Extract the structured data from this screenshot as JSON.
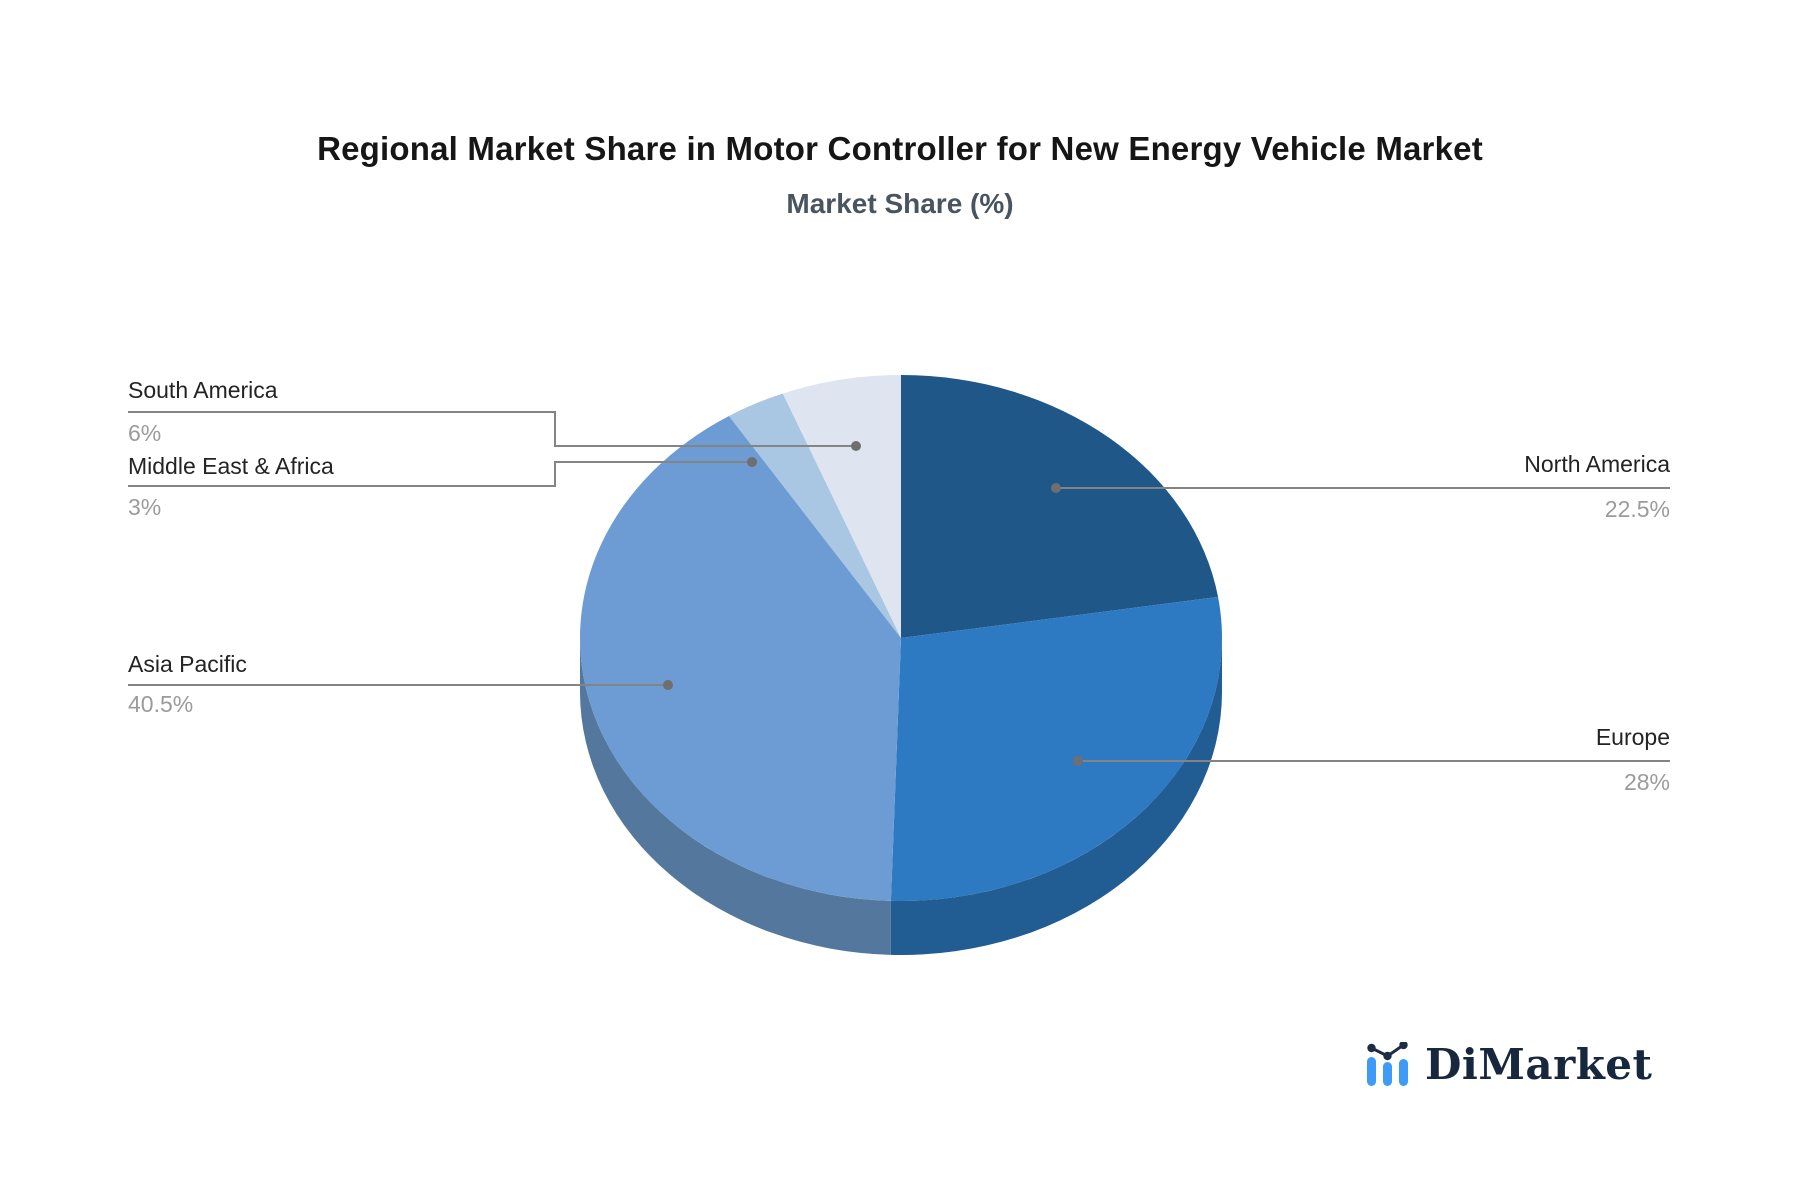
{
  "chart_data": {
    "type": "pie",
    "effect": "3d",
    "title": "Regional Market Share in Motor Controller for New Energy Vehicle Market",
    "subtitle": "Market Share (%)",
    "unit": "%",
    "direction": "clockwise",
    "start_angle_deg": 0,
    "legend_position": "none",
    "label_style": "callout-lines",
    "slices": [
      {
        "label": "North America",
        "value": 22.5,
        "display_value": "22.5%",
        "color": "#1F5788",
        "side_color": "#19466E"
      },
      {
        "label": "Europe",
        "value": 28,
        "display_value": "28%",
        "color": "#2E7AC2",
        "side_color": "#215C93"
      },
      {
        "label": "Asia Pacific",
        "value": 40.5,
        "display_value": "40.5%",
        "color": "#6D9CD4",
        "side_color": "#54789D"
      },
      {
        "label": "Middle East & Africa",
        "value": 3,
        "display_value": "3%",
        "color": "#A9C7E3",
        "side_color": "#8BA7C2"
      },
      {
        "label": "South America",
        "value": 6,
        "display_value": "6%",
        "color": "#DFE5F0",
        "side_color": "#B9C3D1"
      }
    ]
  },
  "style": {
    "background": "#FFFFFF",
    "title_color": "#161616",
    "subtitle_color": "#49545E",
    "label_color": "#232323",
    "value_color": "#9B9B9B",
    "leader_line_color": "#848484",
    "leader_dot_color": "#6F6F6F"
  },
  "brand": {
    "name": "DiMarket",
    "icon": "bar-chart-logo-icon",
    "icon_bar_color": "#3E9CF8",
    "icon_accent_color": "#1D2D44",
    "text_color": "#16273E"
  }
}
